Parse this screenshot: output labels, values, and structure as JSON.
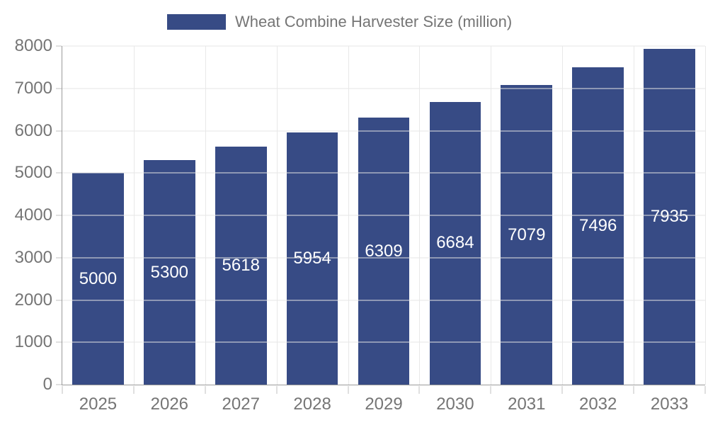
{
  "chart_data": {
    "type": "bar",
    "title": "",
    "legend": [
      "Wheat Combine Harvester Size (million)"
    ],
    "legend_position": "top-center",
    "categories": [
      "2025",
      "2026",
      "2027",
      "2028",
      "2029",
      "2030",
      "2031",
      "2032",
      "2033"
    ],
    "values": [
      5000,
      5300,
      5618,
      5954,
      6309,
      6684,
      7079,
      7496,
      7935
    ],
    "value_labels_shown": true,
    "xlabel": "",
    "ylabel": "",
    "ylim": [
      0,
      8000
    ],
    "yticks": [
      0,
      1000,
      2000,
      3000,
      4000,
      5000,
      6000,
      7000,
      8000
    ],
    "grid": true,
    "bar_color": "#374B85",
    "bar_label_color": "#ffffff",
    "axis_text_color": "#757575"
  }
}
